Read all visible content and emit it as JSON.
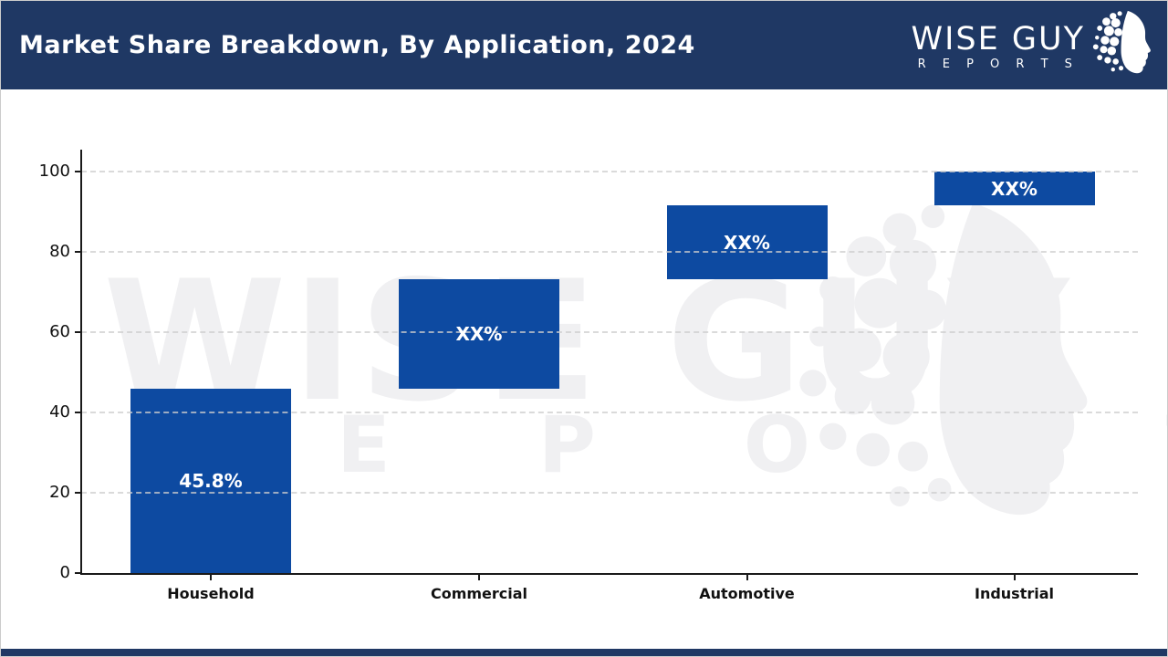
{
  "header": {
    "logo": {
      "line1": "WISE GUY",
      "line2": "R E P O R T S"
    }
  },
  "watermark": {
    "line1": "WISE GUY",
    "line2": "R E P O R T S"
  },
  "colors": {
    "header_bg": "#1f3864",
    "bar": "#0d4aa1",
    "grid": "#d8d8d8",
    "axis": "#1a1a1a",
    "bar_label": "#ffffff",
    "watermark": "#f0f0f2"
  },
  "chart_data": {
    "type": "bar",
    "subtype": "waterfall",
    "title": "Market Share Breakdown, By Application, 2024",
    "categories": [
      "Household",
      "Commercial",
      "Automotive",
      "Industrial"
    ],
    "segments": [
      {
        "category": "Household",
        "start": 0,
        "end": 45.8,
        "label": "45.8%"
      },
      {
        "category": "Commercial",
        "start": 45.8,
        "end": 73.1,
        "label": "XX%"
      },
      {
        "category": "Automotive",
        "start": 73.1,
        "end": 91.5,
        "label": "XX%"
      },
      {
        "category": "Industrial",
        "start": 91.5,
        "end": 100,
        "label": "XX%"
      }
    ],
    "ylim": [
      0,
      100
    ],
    "yticks": [
      0,
      20,
      40,
      60,
      80,
      100
    ],
    "xlabel": "",
    "ylabel": "",
    "grid": "horizontal-dashed",
    "legend": "none"
  }
}
